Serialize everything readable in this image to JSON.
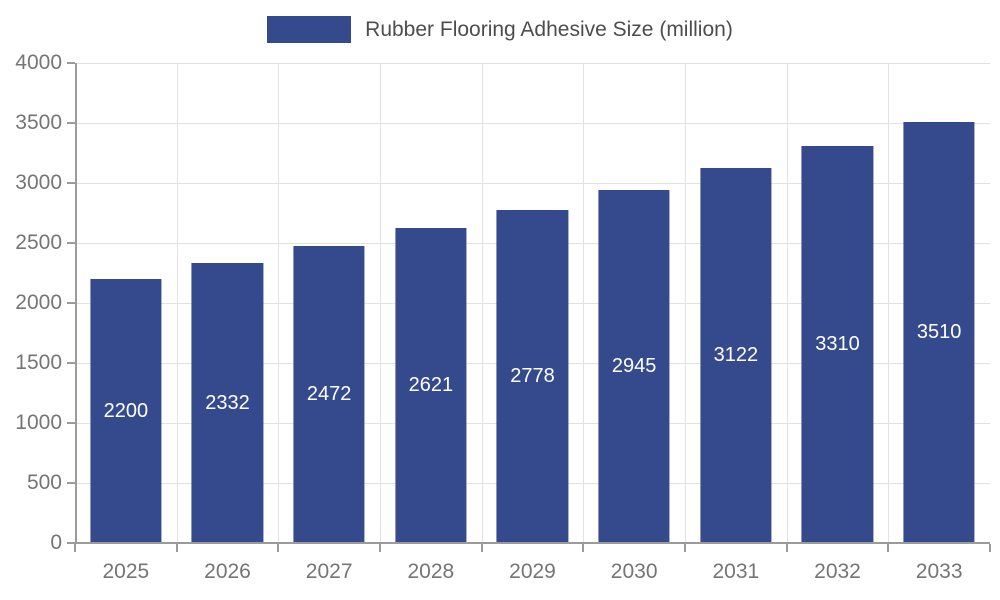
{
  "legend": {
    "label": "Rubber Flooring Adhesive Size (million)"
  },
  "colors": {
    "bar": "#344a8c",
    "grid": "#e2e2e2",
    "axis": "#9b9b9b",
    "tick_text": "#757575",
    "legend_text": "#4d4d4d",
    "value_label": "#ffffff"
  },
  "chart_data": {
    "type": "bar",
    "title": "Rubber Flooring Adhesive Size (million)",
    "categories": [
      "2025",
      "2026",
      "2027",
      "2028",
      "2029",
      "2030",
      "2031",
      "2032",
      "2033"
    ],
    "values": [
      2200,
      2332,
      2472,
      2621,
      2778,
      2945,
      3122,
      3310,
      3510
    ],
    "xlabel": "",
    "ylabel": "",
    "ylim": [
      0,
      4000
    ],
    "ytick_step": 500,
    "yticks": [
      0,
      500,
      1000,
      1500,
      2000,
      2500,
      3000,
      3500,
      4000
    ],
    "grid": true,
    "legend_position": "top",
    "value_labels": "inside-center",
    "bar_width_ratio": 0.7
  }
}
